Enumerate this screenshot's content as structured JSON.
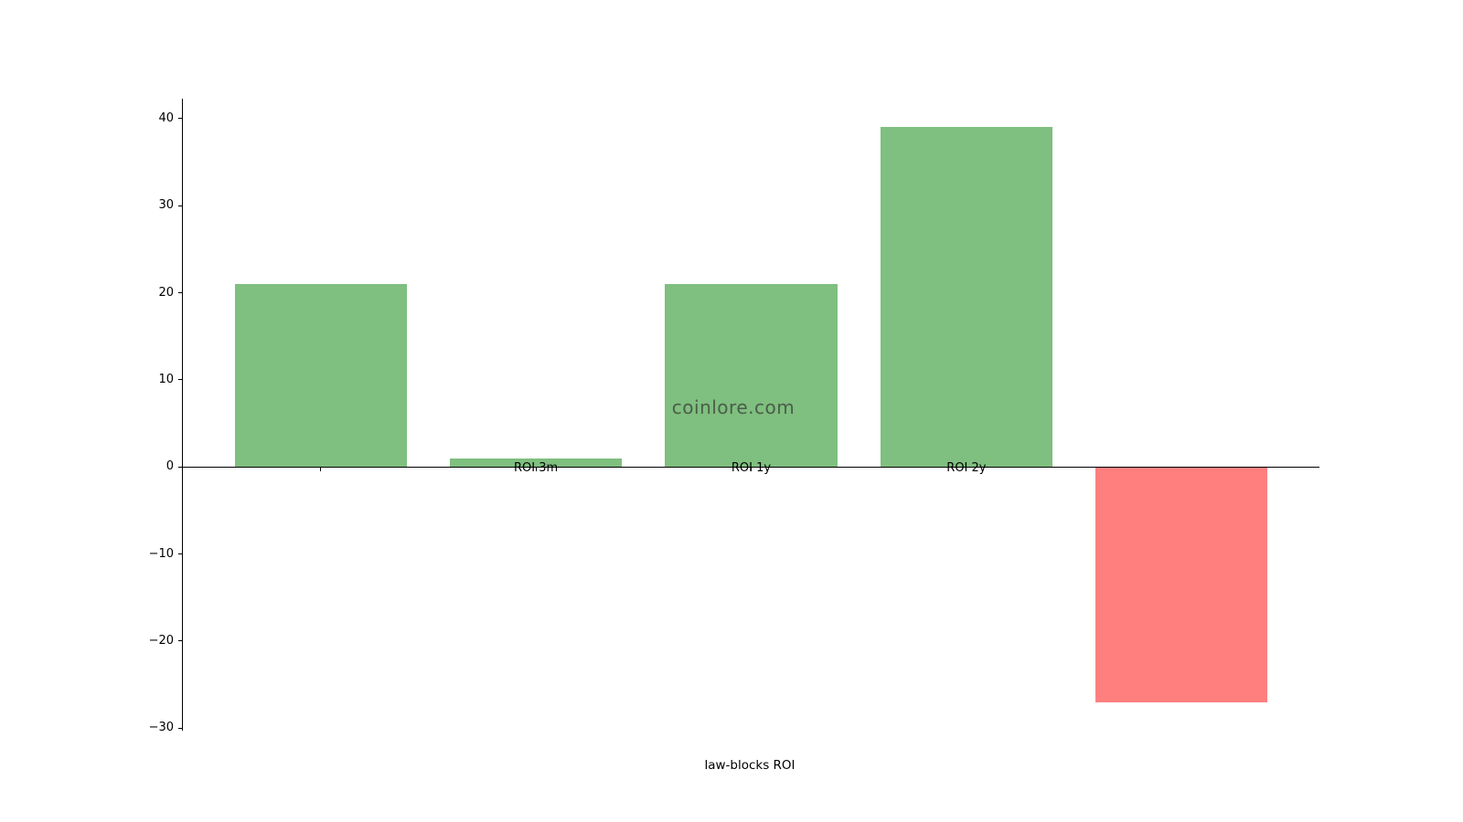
{
  "chart_data": {
    "type": "bar",
    "title": "",
    "xlabel": "law-blocks ROI",
    "ylabel": "",
    "categories": [
      "",
      "ROI 3m",
      "ROI 1y",
      "ROI 2y",
      ""
    ],
    "values": [
      21,
      1,
      21,
      39,
      -27
    ],
    "bar_width": 0.8,
    "yticks": [
      40,
      30,
      20,
      10,
      0,
      -10,
      -20,
      -30
    ],
    "ytick_labels": [
      "40",
      "30",
      "20",
      "10",
      "0",
      "−10",
      "−20",
      "−30"
    ],
    "ylim": [
      -30.3,
      42.3
    ],
    "xlim": [
      -0.64,
      4.64
    ],
    "grid": false,
    "legend": false,
    "watermark": "coinlore.com",
    "colors": {
      "positive_bar": "#7fbf7f",
      "negative_bar": "#ff7f7f",
      "axis": "#000000",
      "tick_label": "#000000",
      "watermark_text": "rgba(51,51,51,0.7)",
      "background": "#ffffff"
    }
  }
}
